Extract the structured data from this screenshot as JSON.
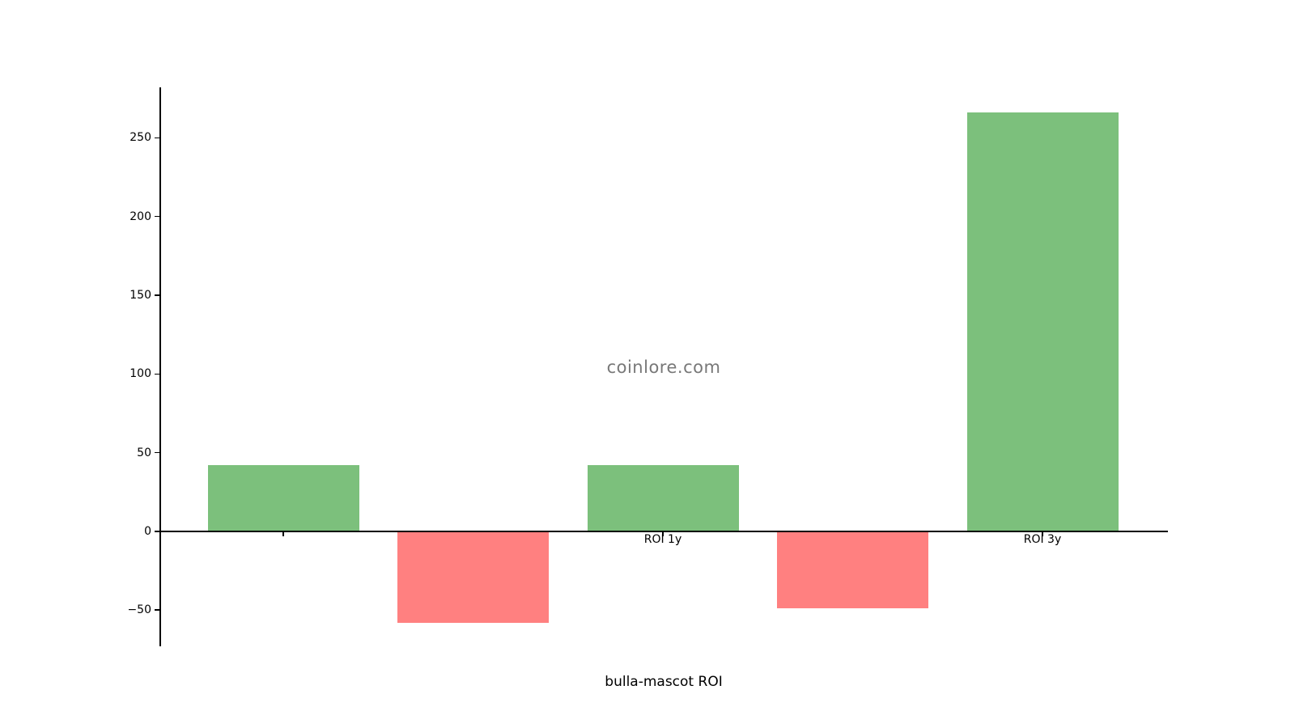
{
  "chart_data": {
    "type": "bar",
    "title": "bulla-mascot ROI",
    "watermark": "coinlore.com",
    "categories": [
      "",
      "",
      "ROI 1y",
      "",
      "ROI 3y"
    ],
    "values": [
      42,
      -58,
      42,
      -49,
      266
    ],
    "yticks": [
      -50,
      0,
      50,
      100,
      150,
      200,
      250
    ],
    "ylim": [
      -73,
      282
    ],
    "xlabel": "",
    "ylabel": "",
    "grid": false,
    "legend": false,
    "colors": {
      "positive": "#7cc07c",
      "negative": "#ff8080",
      "axis": "#000000",
      "watermark": "#787878"
    }
  }
}
